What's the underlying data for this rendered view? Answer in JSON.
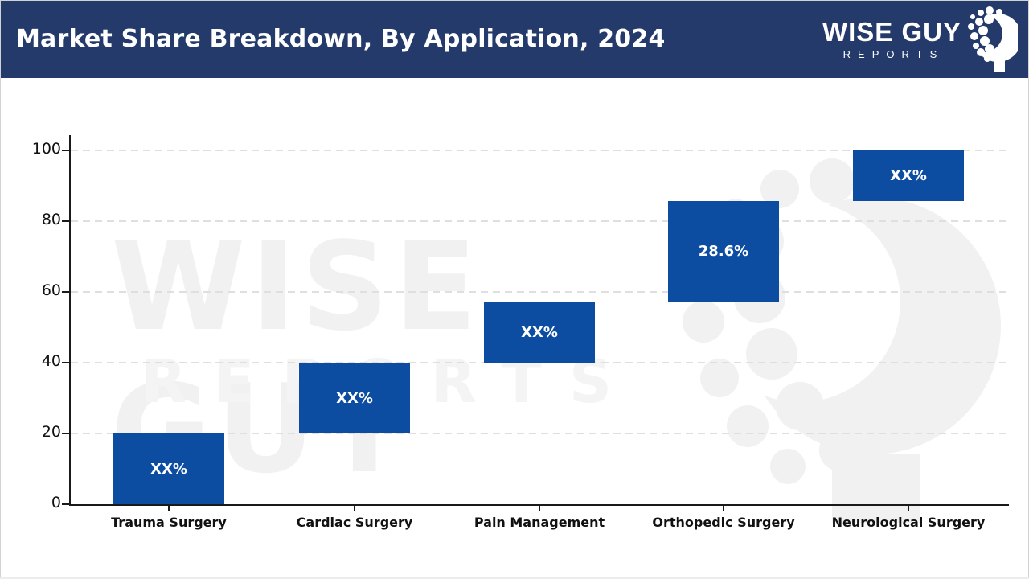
{
  "header": {
    "title": "Market Share Breakdown, By Application, 2024",
    "logo": {
      "name": "WISE GUY",
      "tagline": "REPORTS"
    }
  },
  "watermark": {
    "line1": "WISE GUY",
    "line2": "REPORTS"
  },
  "colors": {
    "header_bg": "#233a6b",
    "bar": "#0c4da2",
    "axis": "#1a1a1a",
    "grid": "#dfdfdf",
    "watermark": "#f1f1f1",
    "bar_label": "#ffffff"
  },
  "chart_data": {
    "type": "bar",
    "subtype": "waterfall",
    "title": "Market Share Breakdown, By Application, 2024",
    "xlabel": "",
    "ylabel": "",
    "ylim": [
      0,
      100
    ],
    "yticks": [
      0,
      20,
      40,
      60,
      80,
      100
    ],
    "grid": "horizontal-dashed",
    "legend": "none",
    "bar_color": "#0c4da2",
    "categories": [
      "Trauma Surgery",
      "Cardiac Surgery",
      "Pain Management",
      "Orthopedic Surgery",
      "Neurological Surgery"
    ],
    "segments": [
      {
        "category": "Trauma Surgery",
        "start": 0,
        "end": 20,
        "value": 20,
        "label": "XX%"
      },
      {
        "category": "Cardiac Surgery",
        "start": 20,
        "end": 40,
        "value": 20,
        "label": "XX%"
      },
      {
        "category": "Pain Management",
        "start": 40,
        "end": 57.1,
        "value": 17.1,
        "label": "XX%"
      },
      {
        "category": "Orthopedic Surgery",
        "start": 57.1,
        "end": 85.7,
        "value": 28.6,
        "label": "28.6%"
      },
      {
        "category": "Neurological Surgery",
        "start": 85.7,
        "end": 100,
        "value": 14.3,
        "label": "XX%"
      }
    ]
  }
}
